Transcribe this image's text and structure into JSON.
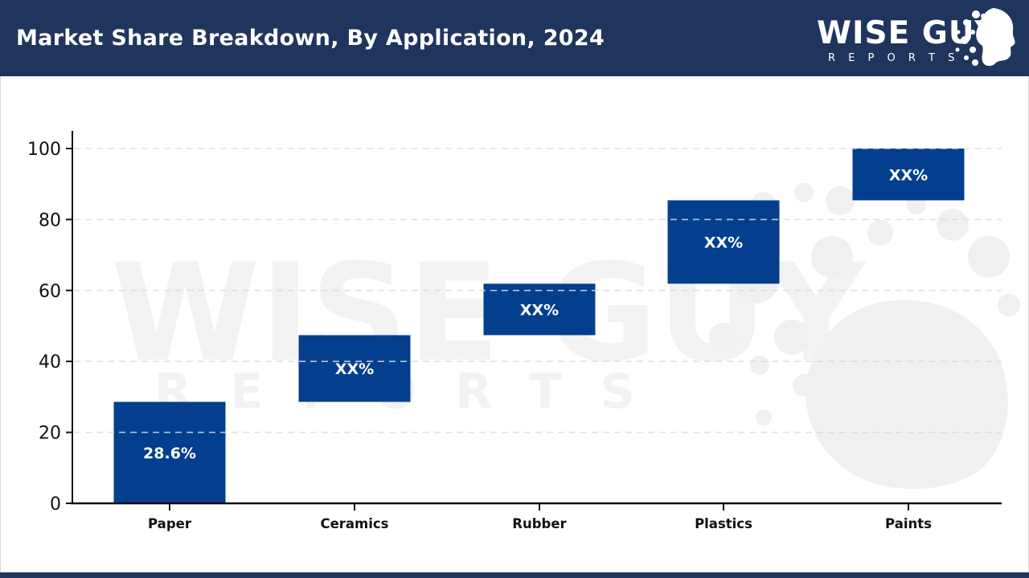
{
  "header": {
    "title": "Market Share Breakdown, By Application, 2024",
    "bg_color": "#20355e",
    "logo": {
      "line1": "WISE GUY",
      "line2": "R E P O R T S"
    }
  },
  "watermark": {
    "line1": "WISE GUY",
    "line2": "REPORTS",
    "color": "#f2f2f2"
  },
  "footer": {
    "bg_color": "#20355e"
  },
  "chart_data": {
    "type": "bar",
    "subtype": "waterfall",
    "title": "Market Share Breakdown, By Application, 2024",
    "categories": [
      "Paper",
      "Ceramics",
      "Rubber",
      "Plastics",
      "Paints"
    ],
    "segments": [
      {
        "category": "Paper",
        "start": 0,
        "end": 28.6,
        "label": "28.6%"
      },
      {
        "category": "Ceramics",
        "start": 28.6,
        "end": 47.4,
        "label": "XX%"
      },
      {
        "category": "Rubber",
        "start": 47.4,
        "end": 61.9,
        "label": "XX%"
      },
      {
        "category": "Plastics",
        "start": 61.9,
        "end": 85.4,
        "label": "XX%"
      },
      {
        "category": "Paints",
        "start": 85.4,
        "end": 100,
        "label": "XX%"
      }
    ],
    "xlabel": "",
    "ylabel": "",
    "ylim": [
      0,
      100
    ],
    "yticks": [
      0,
      20,
      40,
      60,
      80,
      100
    ],
    "grid": "horizontal dashed, drawn over bars",
    "legend": "none",
    "bar_color": "#043f8f",
    "bar_label_color": "#ffffff",
    "axis_color": "#111111",
    "gridline_color": "#dcdcdc"
  }
}
